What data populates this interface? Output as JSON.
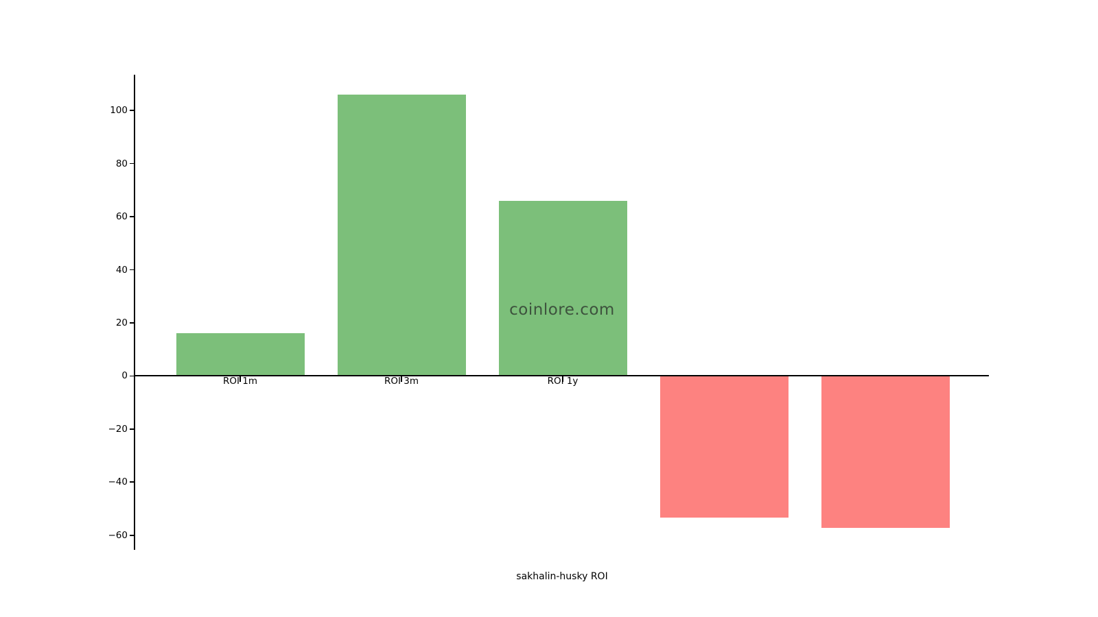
{
  "chart_data": {
    "type": "bar",
    "xlabel": "sakhalin-husky ROI",
    "watermark": "coinlore.com",
    "categories": [
      "ROI 1m",
      "ROI 3m",
      "ROI 1y",
      "",
      ""
    ],
    "values": [
      16,
      106,
      66,
      -53,
      -57
    ],
    "positive_color": "#7cbf7a",
    "negative_color": "#fd8280",
    "axis_color": "#000000",
    "ytick_labels": [
      "100",
      "80",
      "60",
      "40",
      "20",
      "0",
      "−20",
      "−40",
      "−60"
    ],
    "ytick_values": [
      100,
      80,
      60,
      40,
      20,
      0,
      -20,
      -40,
      -60
    ],
    "ylim": [
      -65.5,
      113.5
    ],
    "grid": false,
    "legend_position": null
  }
}
